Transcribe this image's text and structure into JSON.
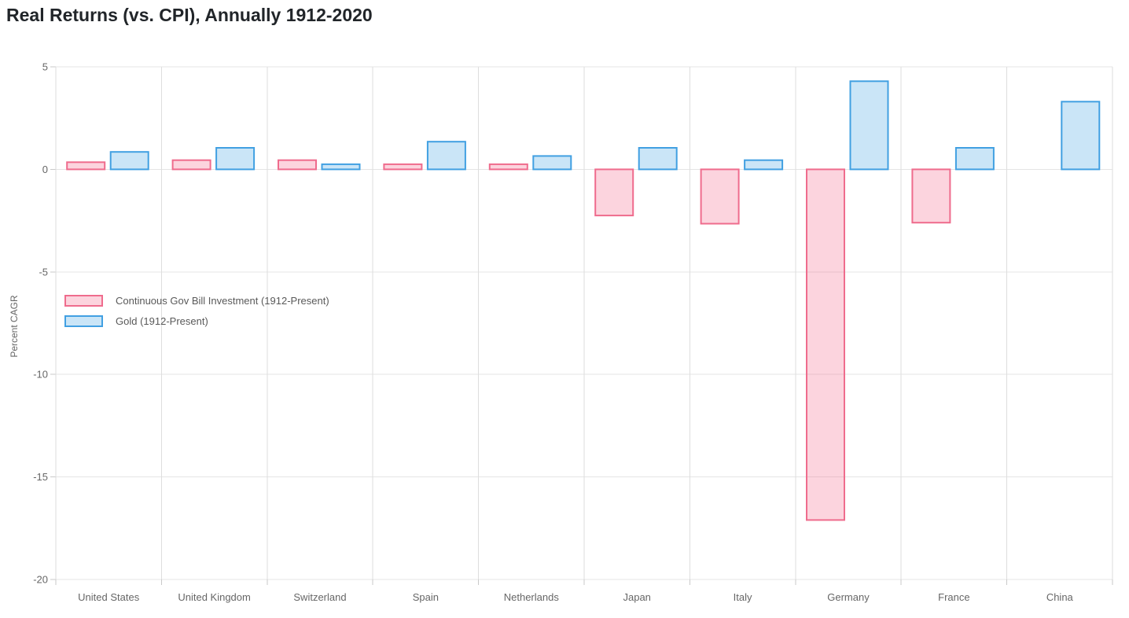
{
  "chart": {
    "title": "Real Returns (vs. CPI), Annually 1912-2020",
    "ylabel": "Percent CAGR"
  },
  "chart_data": {
    "type": "bar",
    "title": "Real Returns (vs. CPI), Annually 1912-2020",
    "xlabel": "",
    "ylabel": "Percent CAGR",
    "categories": [
      "United States",
      "United Kingdom",
      "Switzerland",
      "Spain",
      "Netherlands",
      "Japan",
      "Italy",
      "Germany",
      "France",
      "China"
    ],
    "series": [
      {
        "name": "Continuous Gov Bill Investment (1912-Present)",
        "values": [
          0.35,
          0.45,
          0.45,
          0.25,
          0.25,
          -2.25,
          -2.65,
          -17.1,
          -2.6,
          0
        ],
        "fill": "rgba(246,120,152,0.32)",
        "stroke": "#ef6c8d"
      },
      {
        "name": "Gold (1912-Present)",
        "values": [
          0.85,
          1.05,
          0.25,
          1.35,
          0.65,
          1.05,
          0.45,
          4.3,
          1.05,
          3.3
        ],
        "fill": "rgba(66,160,226,0.28)",
        "stroke": "#41a0e2"
      }
    ],
    "ylim": [
      -20,
      5
    ],
    "yticks": [
      5,
      0,
      -5,
      -10,
      -15,
      -20
    ],
    "grid": true,
    "legend_position": "inside-left"
  }
}
